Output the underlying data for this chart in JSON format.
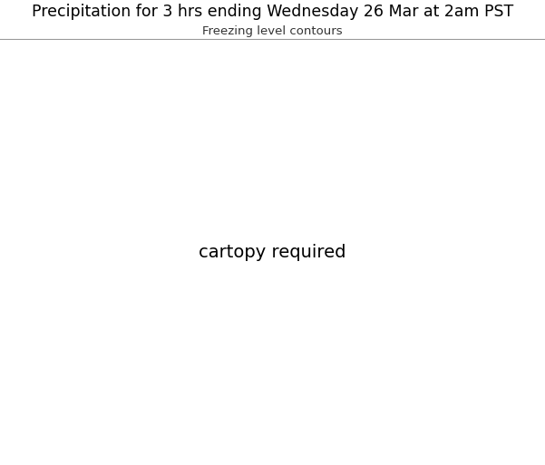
{
  "title": "Precipitation for 3 hrs ending Wednesday 26 Mar at 2am PST",
  "subtitle": "Freezing level contours",
  "title_fontsize": 12.5,
  "subtitle_fontsize": 9.5,
  "fig_width": 6.01,
  "fig_height": 5.13,
  "dpi": 100,
  "background_color": "#ffffff",
  "ocean_color": "#c8cfe0",
  "land_color_light": "#b0b0b0",
  "land_color_dark": "#787878",
  "contour_color": "#dd0000",
  "title_area_color": "#ffffff",
  "lon_min": 112.0,
  "lon_max": 132.0,
  "lat_min": 3.0,
  "lat_max": 27.0,
  "contour_label_fontsize": 7,
  "contour_linewidth": 1.1,
  "title_border_color": "#999999"
}
